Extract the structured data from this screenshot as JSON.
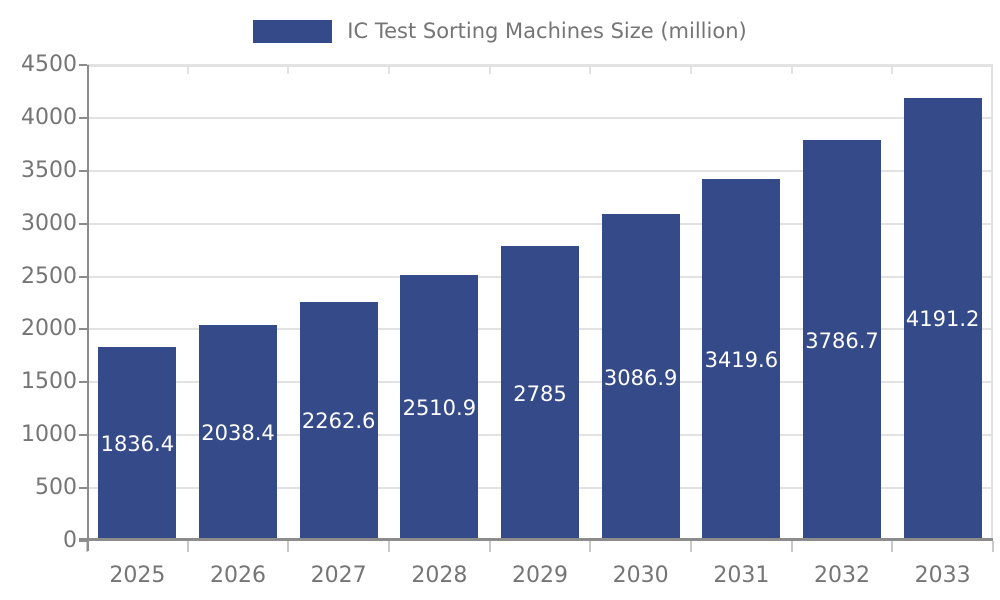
{
  "legend": {
    "label": "IC Test Sorting Machines Size (million)"
  },
  "chart_data": {
    "type": "bar",
    "title": "IC Test Sorting Machines Size (million)",
    "legend_entries": [
      "IC Test Sorting Machines Size (million)"
    ],
    "legend_position": "top-center",
    "categories": [
      "2025",
      "2026",
      "2027",
      "2028",
      "2029",
      "2030",
      "2031",
      "2032",
      "2033"
    ],
    "series": [
      {
        "name": "IC Test Sorting Machines Size (million)",
        "values": [
          1836.4,
          2038.4,
          2262.6,
          2510.9,
          2785,
          3086.9,
          3419.6,
          3786.7,
          4191.2
        ]
      }
    ],
    "value_labels": [
      "1836.4",
      "2038.4",
      "2262.6",
      "2510.9",
      "2785",
      "3086.9",
      "3419.6",
      "3786.7",
      "4191.2"
    ],
    "xlabel": "",
    "ylabel": "",
    "ylim": [
      0,
      4500
    ],
    "ytick_step": 500,
    "ytick_labels": [
      "0",
      "500",
      "1000",
      "1500",
      "2000",
      "2500",
      "3000",
      "3500",
      "4000",
      "4500"
    ],
    "grid": true,
    "value_labels_inside_centered": true,
    "colors": {
      "bar": "#354a89",
      "value_label_text": "#ffffff",
      "axis_text": "#757575",
      "axis_line": "#8c8c8c",
      "tick_bottom": "#c9c9c9",
      "grid_line": "#e2e2e2",
      "border_light": "#e2e2e2",
      "background": "#ffffff"
    }
  }
}
